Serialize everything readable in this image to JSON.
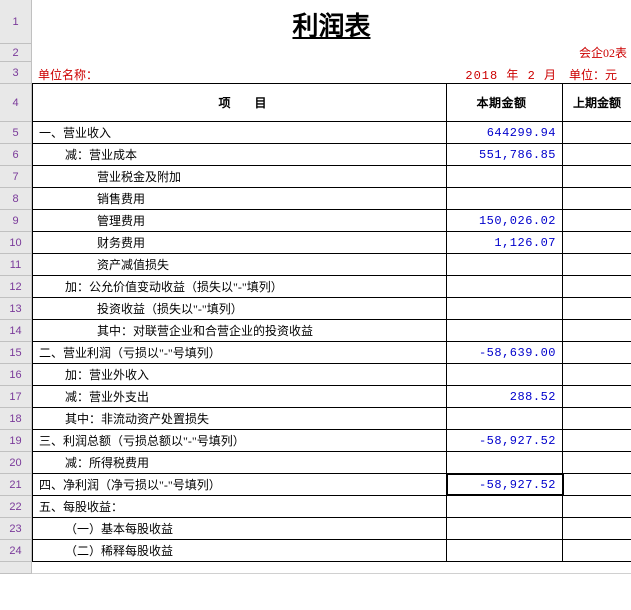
{
  "title": "利润表",
  "form_number": "会企02表",
  "unit_name_label": "单位名称：",
  "date_text": "2018 年 2 月",
  "currency_unit": "单位：元",
  "headers": {
    "item": "项目",
    "current": "本期金额",
    "prior": "上期金额"
  },
  "rows": [
    {
      "n": 5,
      "label": "一、营业收入",
      "indent": 0,
      "current": "644299.94"
    },
    {
      "n": 6,
      "label": "减：营业成本",
      "indent": 1,
      "current": "551,786.85"
    },
    {
      "n": 7,
      "label": "营业税金及附加",
      "indent": 2,
      "current": ""
    },
    {
      "n": 8,
      "label": "销售费用",
      "indent": 2,
      "current": ""
    },
    {
      "n": 9,
      "label": "管理费用",
      "indent": 2,
      "current": "150,026.02"
    },
    {
      "n": 10,
      "label": "财务费用",
      "indent": 2,
      "current": "1,126.07"
    },
    {
      "n": 11,
      "label": "资产减值损失",
      "indent": 2,
      "current": ""
    },
    {
      "n": 12,
      "label": "加：公允价值变动收益（损失以\"-\"填列）",
      "indent": 1,
      "current": ""
    },
    {
      "n": 13,
      "label": "投资收益（损失以\"-\"填列）",
      "indent": 2,
      "current": ""
    },
    {
      "n": 14,
      "label": "其中：对联营企业和合营企业的投资收益",
      "indent": 2,
      "current": ""
    },
    {
      "n": 15,
      "label": "二、营业利润（亏损以\"-\"号填列）",
      "indent": 0,
      "current": "-58,639.00"
    },
    {
      "n": 16,
      "label": "加：营业外收入",
      "indent": 1,
      "current": ""
    },
    {
      "n": 17,
      "label": "减：营业外支出",
      "indent": 1,
      "current": "288.52"
    },
    {
      "n": 18,
      "label": "其中：非流动资产处置损失",
      "indent": 1,
      "current": ""
    },
    {
      "n": 19,
      "label": "三、利润总额（亏损总额以\"-\"号填列）",
      "indent": 0,
      "current": "-58,927.52"
    },
    {
      "n": 20,
      "label": "减：所得税费用",
      "indent": 1,
      "current": ""
    },
    {
      "n": 21,
      "label": "四、净利润（净亏损以\"-\"号填列）",
      "indent": 0,
      "current": "-58,927.52",
      "selected": true
    },
    {
      "n": 22,
      "label": "五、每股收益：",
      "indent": 0,
      "current": ""
    },
    {
      "n": 23,
      "label": "（一）基本每股收益",
      "indent": 1,
      "current": ""
    },
    {
      "n": 24,
      "label": "（二）稀释每股收益",
      "indent": 1,
      "current": ""
    }
  ],
  "colors": {
    "accent_red": "#cc0000",
    "value_blue": "#0000cc",
    "rowhead_purple": "#7a3a9a",
    "gutter_bg": "#e8e8e8"
  }
}
